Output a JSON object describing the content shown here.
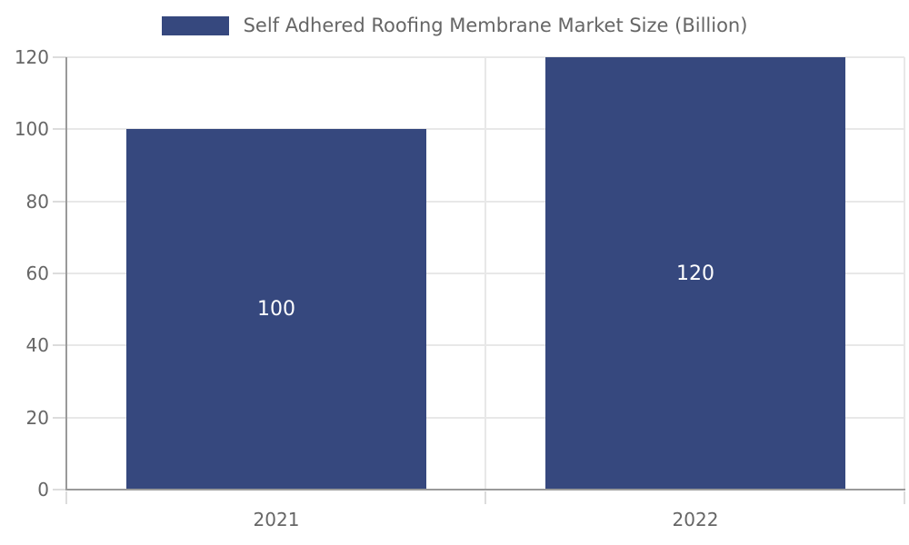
{
  "legend": {
    "label": "Self Adhered Roofing Membrane Market Size (Billion)"
  },
  "colors": {
    "bar": "#36487e",
    "axis": "#9a9a9a",
    "grid": "#e8e8e8",
    "tick_mark": "#dcdcdc",
    "tick_text": "#666666",
    "bar_label_text": "#ffffff",
    "background": "#ffffff"
  },
  "chart_data": {
    "type": "bar",
    "title": "",
    "xlabel": "",
    "ylabel": "",
    "categories": [
      "2021",
      "2022"
    ],
    "values": [
      100,
      120
    ],
    "series_name": "Self Adhered Roofing Membrane Market Size (Billion)",
    "bar_labels": [
      "100",
      "120"
    ],
    "bar_label_position": "center",
    "ylim": [
      0,
      120
    ],
    "yticks": [
      0,
      20,
      40,
      60,
      80,
      100,
      120
    ],
    "grid": true,
    "legend_position": "top-center"
  }
}
